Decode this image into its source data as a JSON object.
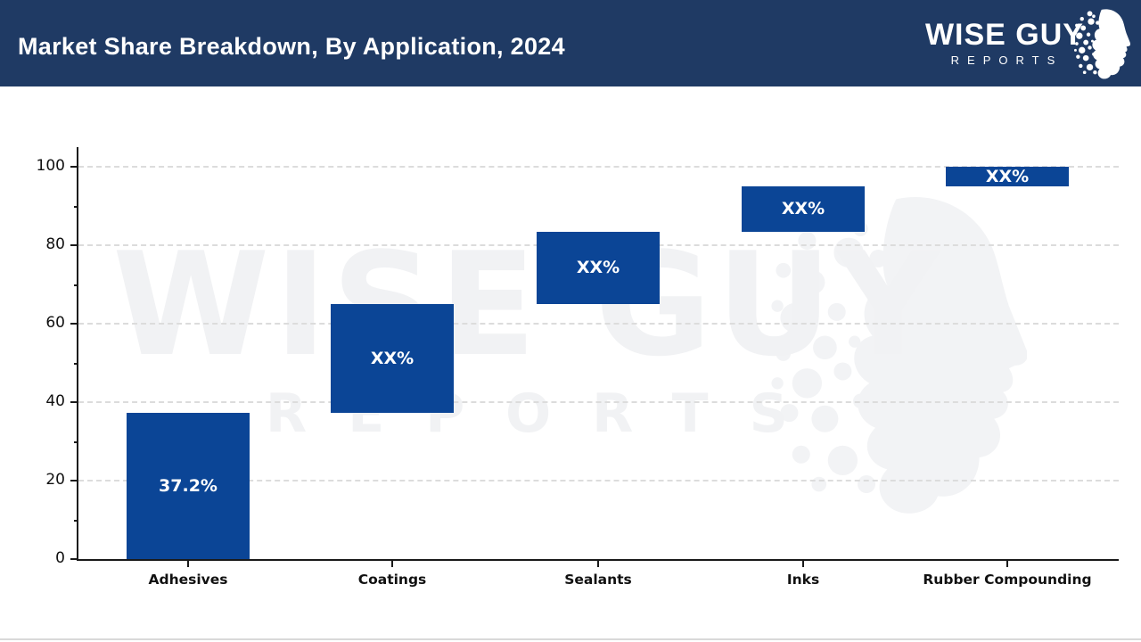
{
  "header": {
    "title": "Market Share Breakdown, By Application, 2024",
    "logo": {
      "wordmark": "WISE GUY",
      "subtext": "REPORTS"
    }
  },
  "watermark": {
    "line1": "WISE GUY",
    "line2": "REPORTS"
  },
  "chart_data": {
    "type": "bar",
    "subtype": "waterfall",
    "title": "Market Share Breakdown, By Application, 2024",
    "categories": [
      "Adhesives",
      "Coatings",
      "Sealants",
      "Inks",
      "Rubber Compounding"
    ],
    "segments": [
      {
        "category": "Adhesives",
        "start": 0,
        "end": 37.2,
        "label": "37.2%"
      },
      {
        "category": "Coatings",
        "start": 37.2,
        "end": 65,
        "label": "XX%"
      },
      {
        "category": "Sealants",
        "start": 65,
        "end": 83.5,
        "label": "XX%"
      },
      {
        "category": "Inks",
        "start": 83.5,
        "end": 95,
        "label": "XX%"
      },
      {
        "category": "Rubber Compounding",
        "start": 95,
        "end": 100,
        "label": "XX%"
      }
    ],
    "xlabel": "",
    "ylabel": "",
    "ylim": [
      0,
      105
    ],
    "yticks": [
      0,
      20,
      40,
      60,
      80,
      100
    ],
    "minor_yticks": [
      10,
      30,
      50,
      70,
      90
    ],
    "grid": "horizontal-dashed",
    "legend": "none",
    "colors": {
      "bar": "#0b4596",
      "bar_label": "#ffffff",
      "grid": "#dcdcdc",
      "axis": "#1a1a1a",
      "tick_label": "#111111",
      "category_label": "#111111"
    }
  },
  "theme": {
    "header_bg": "#1f3a64",
    "page_bg": "#ffffff",
    "watermark_color": "#f1f2f4",
    "bottom_line": "#d9d9d9"
  }
}
